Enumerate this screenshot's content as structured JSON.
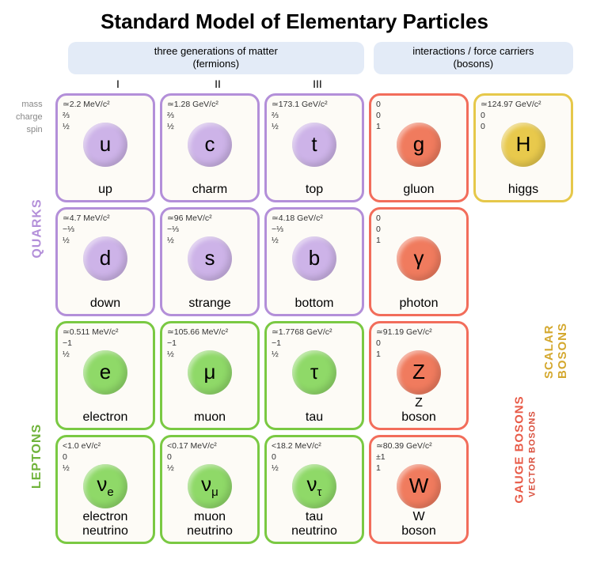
{
  "title": "Standard Model of Elementary Particles",
  "headers": {
    "fermions_line1": "three generations of matter",
    "fermions_line2": "(fermions)",
    "bosons_line1": "interactions / force carriers",
    "bosons_line2": "(bosons)"
  },
  "generations": {
    "g1": "I",
    "g2": "II",
    "g3": "III"
  },
  "props": {
    "mass": "mass",
    "charge": "charge",
    "spin": "spin"
  },
  "side_labels": {
    "quarks": "QUARKS",
    "leptons": "LEPTONS",
    "gauge": "GAUGE BOSONS",
    "vector": "VECTOR BOSONS",
    "scalar": "SCALAR BOSONS"
  },
  "colors": {
    "quark_border": "#b38fd9",
    "lepton_border": "#7ac943",
    "gauge_border": "#f26d5b",
    "scalar_border": "#e6c84a",
    "quark_circle": "#cdb3e8",
    "lepton_circle": "#8fd968",
    "gauge_circle": "#f07b5e",
    "scalar_circle": "#e8c94c",
    "quark_text": "#b38fd9",
    "lepton_text": "#6fb33a",
    "gauge_text": "#e85a47",
    "vector_text": "#d94f3d",
    "scalar_text": "#d4a82e",
    "tile_bg": "#fdfbf6",
    "header_pill_bg": "#e3ebf7"
  },
  "particles": {
    "up": {
      "mass": "≃2.2 MeV/c²",
      "charge": "⅔",
      "spin": "½",
      "symbol": "u",
      "name": "up"
    },
    "charm": {
      "mass": "≃1.28 GeV/c²",
      "charge": "⅔",
      "spin": "½",
      "symbol": "c",
      "name": "charm"
    },
    "top": {
      "mass": "≃173.1 GeV/c²",
      "charge": "⅔",
      "spin": "½",
      "symbol": "t",
      "name": "top"
    },
    "down": {
      "mass": "≃4.7 MeV/c²",
      "charge": "−⅓",
      "spin": "½",
      "symbol": "d",
      "name": "down"
    },
    "strange": {
      "mass": "≃96 MeV/c²",
      "charge": "−⅓",
      "spin": "½",
      "symbol": "s",
      "name": "strange"
    },
    "bottom": {
      "mass": "≃4.18 GeV/c²",
      "charge": "−⅓",
      "spin": "½",
      "symbol": "b",
      "name": "bottom"
    },
    "electron": {
      "mass": "≃0.511 MeV/c²",
      "charge": "−1",
      "spin": "½",
      "symbol": "e",
      "name": "electron"
    },
    "muon": {
      "mass": "≃105.66 MeV/c²",
      "charge": "−1",
      "spin": "½",
      "symbol": "μ",
      "name": "muon"
    },
    "tau": {
      "mass": "≃1.7768 GeV/c²",
      "charge": "−1",
      "spin": "½",
      "symbol": "τ",
      "name": "tau"
    },
    "ve": {
      "mass": "<1.0 eV/c²",
      "charge": "0",
      "spin": "½",
      "symbol": "ν",
      "sub": "e",
      "name": "electron neutrino"
    },
    "vmu": {
      "mass": "<0.17 MeV/c²",
      "charge": "0",
      "spin": "½",
      "symbol": "ν",
      "sub": "μ",
      "name": "muon neutrino"
    },
    "vtau": {
      "mass": "<18.2 MeV/c²",
      "charge": "0",
      "spin": "½",
      "symbol": "ν",
      "sub": "τ",
      "name": "tau neutrino"
    },
    "gluon": {
      "mass": "0",
      "charge": "0",
      "spin": "1",
      "symbol": "g",
      "name": "gluon"
    },
    "photon": {
      "mass": "0",
      "charge": "0",
      "spin": "1",
      "symbol": "γ",
      "name": "photon"
    },
    "zboson": {
      "mass": "≃91.19 GeV/c²",
      "charge": "0",
      "spin": "1",
      "symbol": "Z",
      "name": "Z boson"
    },
    "wboson": {
      "mass": "≃80.39 GeV/c²",
      "charge": "±1",
      "spin": "1",
      "symbol": "W",
      "name": "W boson"
    },
    "higgs": {
      "mass": "≃124.97 GeV/c²",
      "charge": "0",
      "spin": "0",
      "symbol": "H",
      "name": "higgs"
    }
  },
  "layout": {
    "rows": [
      [
        "up",
        "charm",
        "top",
        "gluon",
        "higgs"
      ],
      [
        "down",
        "strange",
        "bottom",
        "photon",
        null
      ],
      [
        "electron",
        "muon",
        "tau",
        "zboson",
        null
      ],
      [
        "ve",
        "vmu",
        "vtau",
        "wboson",
        null
      ]
    ],
    "group_by_particle": {
      "up": "quark",
      "charm": "quark",
      "top": "quark",
      "down": "quark",
      "strange": "quark",
      "bottom": "quark",
      "electron": "lepton",
      "muon": "lepton",
      "tau": "lepton",
      "ve": "lepton",
      "vmu": "lepton",
      "vtau": "lepton",
      "gluon": "gauge",
      "photon": "gauge",
      "zboson": "gauge",
      "wboson": "gauge",
      "higgs": "scalar"
    }
  }
}
